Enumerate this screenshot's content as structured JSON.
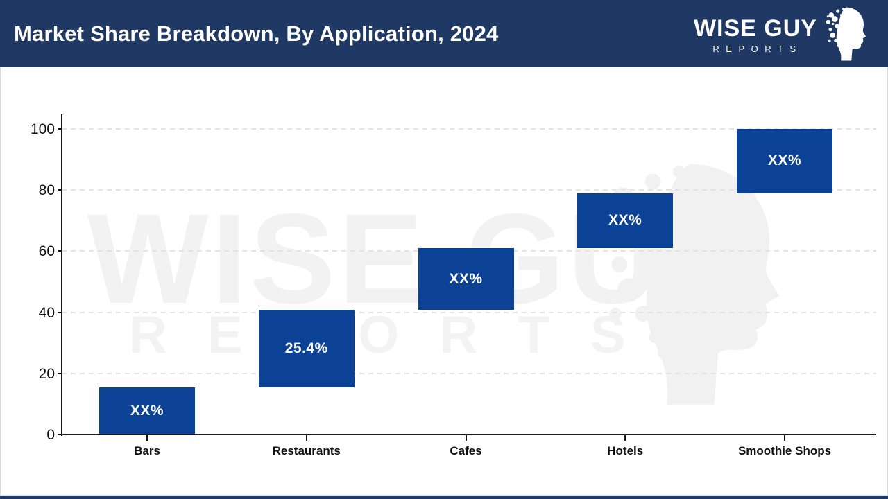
{
  "header": {
    "title": "Market Share Breakdown, By Application, 2024",
    "logo": {
      "line1": "WISE GUY",
      "line2": "REPORTS"
    }
  },
  "watermark": {
    "line1": "WISE GUY",
    "line2": "REPORTS"
  },
  "chart_data": {
    "type": "bar",
    "subtype": "floating-waterfall",
    "title": "Market Share Breakdown, By Application, 2024",
    "categories": [
      "Bars",
      "Restaurants",
      "Cafes",
      "Hotels",
      "Smoothie Shops"
    ],
    "segments": [
      {
        "category": "Bars",
        "start": 0,
        "end": 15.4,
        "label": "XX%"
      },
      {
        "category": "Restaurants",
        "start": 15.4,
        "end": 40.8,
        "label": "25.4%"
      },
      {
        "category": "Cafes",
        "start": 40.8,
        "end": 61.0,
        "label": "XX%"
      },
      {
        "category": "Hotels",
        "start": 61.0,
        "end": 79.0,
        "label": "XX%"
      },
      {
        "category": "Smoothie Shops",
        "start": 79.0,
        "end": 100.0,
        "label": "XX%"
      }
    ],
    "xlabel": "",
    "ylabel": "",
    "ylim": [
      0,
      104.5
    ],
    "yticks": [
      0,
      20,
      40,
      60,
      80,
      100
    ],
    "grid": "horizontal-dashed",
    "legend": "none",
    "bar_color": "#0b4295",
    "bar_label_color": "#ffffff",
    "header_color": "#1f3864"
  }
}
